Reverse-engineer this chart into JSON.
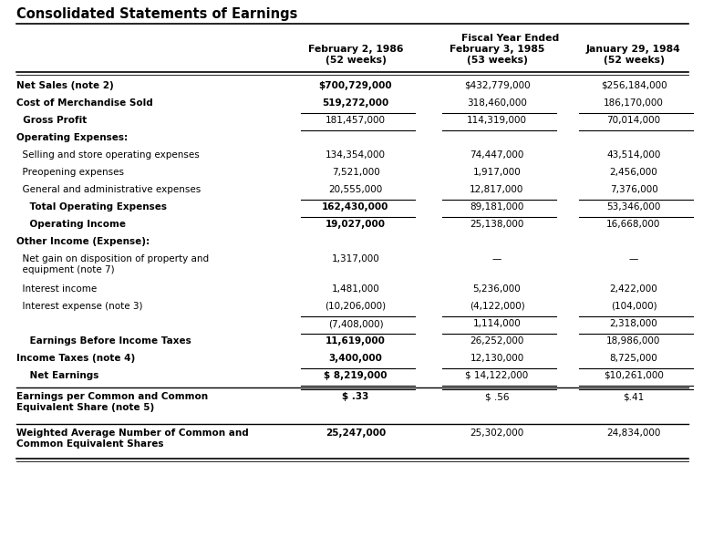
{
  "title": "Consolidated Statements of Earnings",
  "col1_header": "February 2, 1986\n(52 weeks)",
  "col2_header": "February 3, 1985\n(53 weeks)",
  "col3_header": "January 29, 1984\n(52 weeks)",
  "fiscal_year_ended": "Fiscal Year Ended",
  "rows": [
    {
      "label": "Net Sales (note 2)",
      "v1": "$700,729,000",
      "v2": "$432,779,000",
      "v3": "$256,184,000",
      "label_bold": true,
      "v1_bold": true,
      "ul1": false,
      "ul2": false,
      "ul3": false,
      "indent": 0,
      "multiline": false
    },
    {
      "label": "Cost of Merchandise Sold",
      "v1": "519,272,000",
      "v2": "318,460,000",
      "v3": "186,170,000",
      "label_bold": true,
      "v1_bold": true,
      "ul1": true,
      "ul2": true,
      "ul3": true,
      "indent": 0,
      "multiline": false
    },
    {
      "label": "  Gross Profit",
      "v1": "181,457,000",
      "v2": "114,319,000",
      "v3": "70,014,000",
      "label_bold": true,
      "v1_bold": false,
      "ul1": true,
      "ul2": true,
      "ul3": true,
      "indent": 1,
      "multiline": false
    },
    {
      "label": "Operating Expenses:",
      "v1": "",
      "v2": "",
      "v3": "",
      "label_bold": true,
      "v1_bold": false,
      "ul1": false,
      "ul2": false,
      "ul3": false,
      "indent": 0,
      "multiline": false
    },
    {
      "label": "  Selling and store operating expenses",
      "v1": "134,354,000",
      "v2": "74,447,000",
      "v3": "43,514,000",
      "label_bold": false,
      "v1_bold": false,
      "ul1": false,
      "ul2": false,
      "ul3": false,
      "indent": 1,
      "multiline": false
    },
    {
      "label": "  Preopening expenses",
      "v1": "7,521,000",
      "v2": "1,917,000",
      "v3": "2,456,000",
      "label_bold": false,
      "v1_bold": false,
      "ul1": false,
      "ul2": false,
      "ul3": false,
      "indent": 1,
      "multiline": false
    },
    {
      "label": "  General and administrative expenses",
      "v1": "20,555,000",
      "v2": "12,817,000",
      "v3": "7,376,000",
      "label_bold": false,
      "v1_bold": false,
      "ul1": true,
      "ul2": true,
      "ul3": true,
      "indent": 1,
      "multiline": false
    },
    {
      "label": "    Total Operating Expenses",
      "v1": "162,430,000",
      "v2": "89,181,000",
      "v3": "53,346,000",
      "label_bold": true,
      "v1_bold": true,
      "ul1": true,
      "ul2": true,
      "ul3": true,
      "indent": 2,
      "multiline": false
    },
    {
      "label": "    Operating Income",
      "v1": "19,027,000",
      "v2": "25,138,000",
      "v3": "16,668,000",
      "label_bold": true,
      "v1_bold": true,
      "ul1": false,
      "ul2": false,
      "ul3": false,
      "indent": 2,
      "multiline": false
    },
    {
      "label": "Other Income (Expense):",
      "v1": "",
      "v2": "",
      "v3": "",
      "label_bold": true,
      "v1_bold": false,
      "ul1": false,
      "ul2": false,
      "ul3": false,
      "indent": 0,
      "multiline": false
    },
    {
      "label": "  Net gain on disposition of property and\n  equipment (note 7)",
      "v1": "1,317,000",
      "v2": "—",
      "v3": "—",
      "label_bold": false,
      "v1_bold": false,
      "ul1": false,
      "ul2": false,
      "ul3": false,
      "indent": 1,
      "multiline": true
    },
    {
      "label": "  Interest income",
      "v1": "1,481,000",
      "v2": "5,236,000",
      "v3": "2,422,000",
      "label_bold": false,
      "v1_bold": false,
      "ul1": false,
      "ul2": false,
      "ul3": false,
      "indent": 1,
      "multiline": false
    },
    {
      "label": "  Interest expense (note 3)",
      "v1": "(10,206,000)",
      "v2": "(4,122,000)",
      "v3": "(104,000)",
      "label_bold": false,
      "v1_bold": false,
      "ul1": true,
      "ul2": true,
      "ul3": true,
      "indent": 1,
      "multiline": false
    },
    {
      "label": "",
      "v1": "(7,408,000)",
      "v2": "1,114,000",
      "v3": "2,318,000",
      "label_bold": false,
      "v1_bold": false,
      "ul1": true,
      "ul2": true,
      "ul3": true,
      "indent": 1,
      "multiline": false
    },
    {
      "label": "    Earnings Before Income Taxes",
      "v1": "11,619,000",
      "v2": "26,252,000",
      "v3": "18,986,000",
      "label_bold": true,
      "v1_bold": true,
      "ul1": false,
      "ul2": false,
      "ul3": false,
      "indent": 2,
      "multiline": false
    },
    {
      "label": "Income Taxes (note 4)",
      "v1": "3,400,000",
      "v2": "12,130,000",
      "v3": "8,725,000",
      "label_bold": true,
      "v1_bold": true,
      "ul1": true,
      "ul2": true,
      "ul3": true,
      "indent": 0,
      "multiline": false
    },
    {
      "label": "    Net Earnings",
      "v1": "$ 8,219,000",
      "v2": "$ 14,122,000",
      "v3": "$10,261,000",
      "label_bold": true,
      "v1_bold": true,
      "ul1": true,
      "ul2": true,
      "ul3": true,
      "indent": 2,
      "multiline": false,
      "double_ul": true
    }
  ],
  "eps_label": "Earnings per Common and Common\nEquivalent Share (note 5)",
  "eps_v1": "$ .33",
  "eps_v2": "$ .56",
  "eps_v3": "$.41",
  "wa_label": "Weighted Average Number of Common and\nCommon Equivalent Shares",
  "wa_v1": "25,247,000",
  "wa_v2": "25,302,000",
  "wa_v3": "24,834,000",
  "bg": "#ffffff",
  "tc": "#000000"
}
